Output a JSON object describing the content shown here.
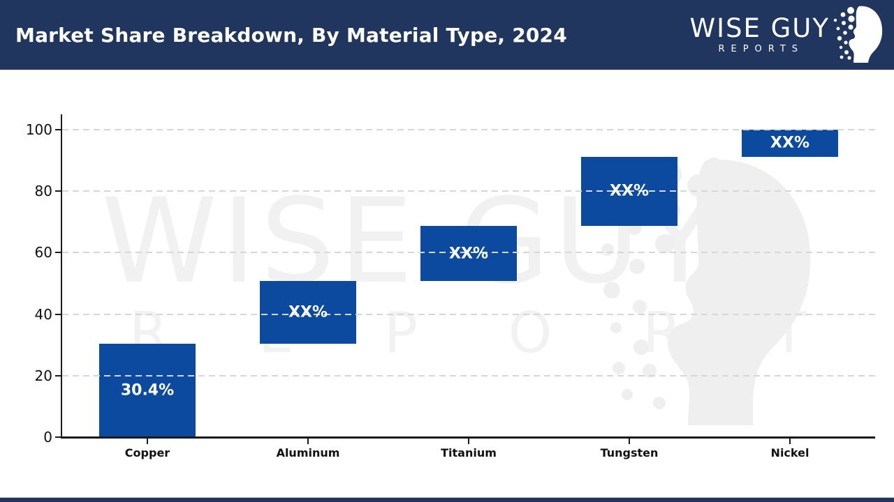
{
  "header": {
    "title": "Market Share Breakdown, By Material Type, 2024",
    "logo": {
      "line1": "WISE GUY",
      "line2": "REPORTS"
    }
  },
  "watermark": {
    "line1": "WISE GUY",
    "line2": "R E P O R T S"
  },
  "footer": {},
  "chart_data": {
    "type": "bar",
    "variant": "waterfall-floating-bars",
    "title": "Market Share Breakdown, By Material Type, 2024",
    "categories": [
      "Copper",
      "Aluminum",
      "Titanium",
      "Tungsten",
      "Nickel"
    ],
    "segments": [
      {
        "category": "Copper",
        "start": 0,
        "end": 30.4,
        "label": "30.4%"
      },
      {
        "category": "Aluminum",
        "start": 30.4,
        "end": 50.8,
        "label": "XX%"
      },
      {
        "category": "Titanium",
        "start": 50.8,
        "end": 68.7,
        "label": "XX%"
      },
      {
        "category": "Tungsten",
        "start": 68.7,
        "end": 91.2,
        "label": "XX%"
      },
      {
        "category": "Nickel",
        "start": 91.2,
        "end": 100.0,
        "label": "XX%"
      }
    ],
    "yticks": [
      0,
      20,
      40,
      60,
      80,
      100
    ],
    "ylim": [
      0,
      105
    ],
    "xlabel": "",
    "ylabel": "",
    "grid": "horizontal-dashed",
    "legend": "none",
    "colors": {
      "bar": "#0b4a9e",
      "header_bar": "#20365f",
      "gridline": "#d7d7d7",
      "axis": "#1a1a1a",
      "bar_label_text": "#ffffff",
      "watermark": "#f1f1f1"
    }
  }
}
